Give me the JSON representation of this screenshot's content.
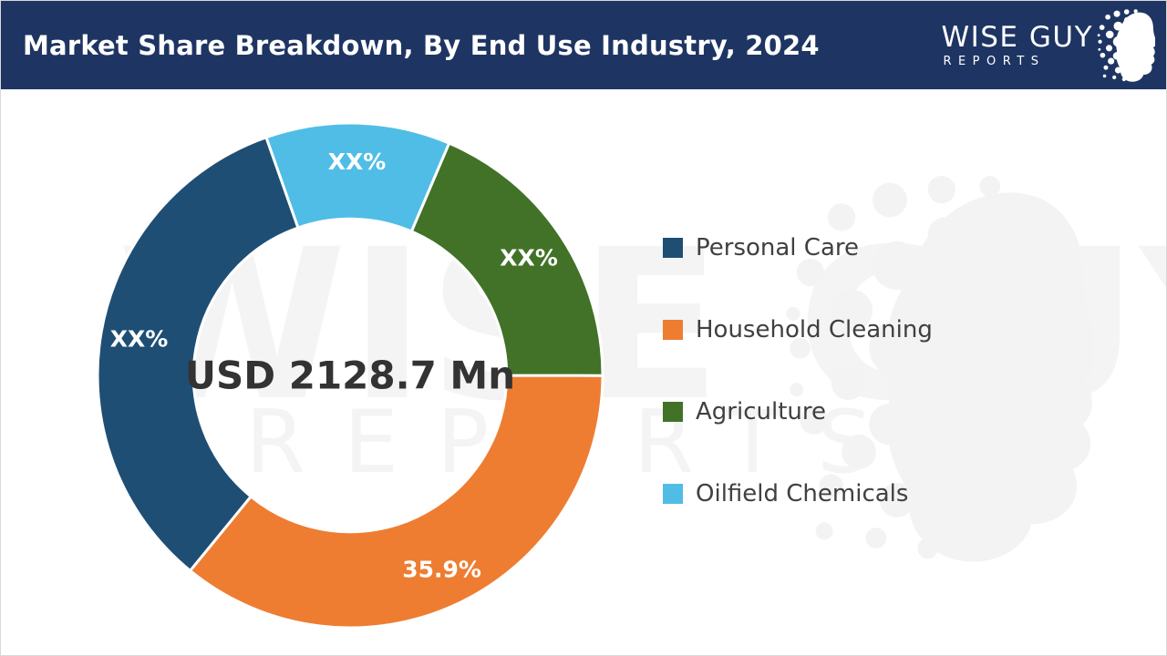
{
  "header": {
    "title": "Market Share Breakdown, By End Use Industry, 2024",
    "background_color": "#1E3563",
    "logo": {
      "line1": "WISE GUY",
      "line2": "REPORTS"
    }
  },
  "watermark": {
    "line1": "WISE GUY",
    "line2": "REPORTS"
  },
  "chart_data": {
    "type": "pie",
    "subtype": "donut",
    "title": "Market Share Breakdown, By End Use Industry, 2024",
    "center_label": "USD 2128.7 Mn",
    "legend_position": "right",
    "direction": "counterclockwise",
    "start_angle_deg": 340.6,
    "inner_radius_ratio": 0.62,
    "categories": [
      "Personal Care",
      "Household Cleaning",
      "Agriculture",
      "Oilfield Chemicals"
    ],
    "values_pct": [
      33.7,
      35.9,
      18.6,
      11.8
    ],
    "data_labels": [
      "XX%",
      "35.9%",
      "XX%",
      "XX%"
    ],
    "colors": [
      "#1F4E74",
      "#EE7D31",
      "#417227",
      "#50BDE6"
    ]
  }
}
